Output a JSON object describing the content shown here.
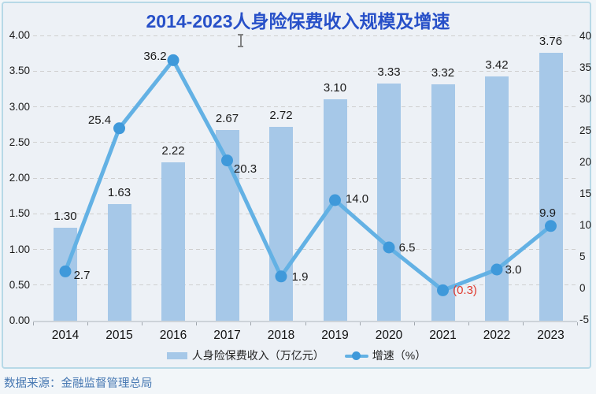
{
  "source": "数据来源：金融监督管理总局",
  "colors": {
    "bar": "#A6C8E8",
    "line": "#63B1E4",
    "marker": "#3F99DA",
    "title": "#2750C8",
    "negative_label": "#E03A2E",
    "grid": "#CFCFCF",
    "source_text": "#4879B3",
    "panel_border": "#B7D9E7",
    "panel_background": "#EDF1F6"
  },
  "chart_data": {
    "type": "bar+line combo",
    "title": "2014-2023人身险保费收入规模及增速",
    "categories": [
      "2014",
      "2015",
      "2016",
      "2017",
      "2018",
      "2019",
      "2020",
      "2021",
      "2022",
      "2023"
    ],
    "series": [
      {
        "name": "人身险保费收入（万亿元）",
        "type": "bar",
        "axis": "left",
        "values": [
          1.3,
          1.63,
          2.22,
          2.67,
          2.72,
          3.1,
          3.33,
          3.32,
          3.42,
          3.76
        ],
        "labels": [
          "1.30",
          "1.63",
          "2.22",
          "2.67",
          "2.72",
          "3.10",
          "3.33",
          "3.32",
          "3.42",
          "3.76"
        ]
      },
      {
        "name": "增速（%）",
        "type": "line",
        "axis": "right",
        "values": [
          2.7,
          25.4,
          36.2,
          20.3,
          1.9,
          14.0,
          6.5,
          -0.3,
          3.0,
          9.9
        ],
        "labels": [
          "2.7",
          "25.4",
          "36.2",
          "20.3",
          "1.9",
          "14.0",
          "6.5",
          "(0.3)",
          "3.0",
          "9.9"
        ]
      }
    ],
    "left_axis": {
      "range": [
        0,
        4.0
      ],
      "ticks": [
        "4.00",
        "3.50",
        "3.00",
        "2.50",
        "2.00",
        "1.50",
        "1.00",
        "0.50",
        "0.00"
      ]
    },
    "right_axis": {
      "range": [
        -5,
        40
      ],
      "ticks": [
        "40",
        "35",
        "30",
        "25",
        "20",
        "15",
        "10",
        "5",
        "0",
        "-5"
      ]
    },
    "grid": "dashed horizontal",
    "legend_position": "bottom"
  }
}
